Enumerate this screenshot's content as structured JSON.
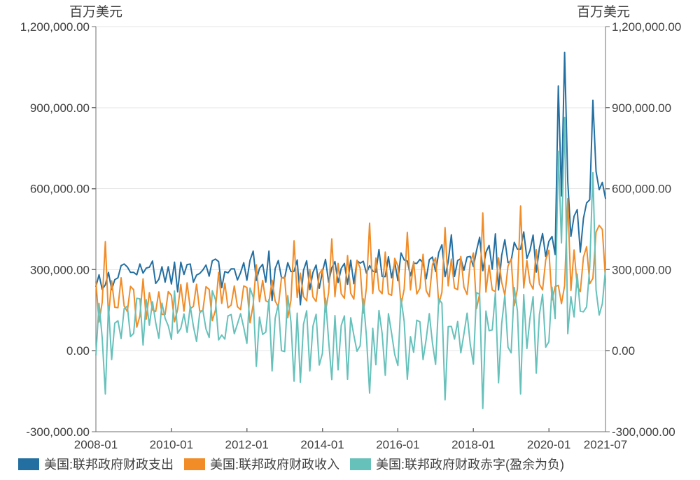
{
  "unit_left": "百万美元",
  "unit_right": "百万美元",
  "colors": {
    "expenditure": "#236FA1",
    "revenue": "#F18C27",
    "deficit": "#67C1BB",
    "text": "#3F3F3F",
    "grid": "#E6E6E6",
    "axis": "#6F6F6F",
    "background": "#FFFFFF"
  },
  "chart_data": {
    "type": "line",
    "unit": "百万美元",
    "frequency": "monthly",
    "x_start": "2008-01",
    "x_end": "2021-07",
    "n_points": 163,
    "grid": "horizontal",
    "legend_position": "bottom",
    "x_ticks": {
      "labels": [
        "2008-01",
        "2010-01",
        "2012-01",
        "2014-01",
        "2016-01",
        "2018-01",
        "2020-01",
        "2021-07"
      ],
      "month_indices": [
        0,
        24,
        48,
        72,
        96,
        120,
        144,
        162
      ]
    },
    "y_axis": {
      "min": -300000,
      "max": 1200000,
      "tick_values": [
        1200000,
        900000,
        600000,
        300000,
        0,
        -300000
      ],
      "tick_labels": [
        "1,200,000.00",
        "900,000.00",
        "600,000.00",
        "300,000.00",
        "0.00",
        "-300,000.00"
      ]
    },
    "series": [
      {
        "key": "expenditure",
        "name": "美国:联邦政府财政支出",
        "values": [
          238000,
          281000,
          227000,
          244000,
          290000,
          226000,
          263000,
          270000,
          315000,
          321000,
          310000,
          290000,
          290000,
          281000,
          321000,
          287000,
          306000,
          309000,
          332000,
          249000,
          264000,
          311000,
          254000,
          311000,
          247000,
          328000,
          218000,
          328000,
          282000,
          319000,
          321000,
          254000,
          280000,
          286000,
          299000,
          317000,
          276000,
          333000,
          339000,
          330000,
          233000,
          293000,
          288000,
          303000,
          303000,
          262000,
          289000,
          326000,
          261000,
          335000,
          369000,
          260000,
          305000,
          320000,
          254000,
          369000,
          186000,
          304000,
          334000,
          270000,
          269000,
          326000,
          293000,
          294000,
          336000,
          170000,
          298000,
          333000,
          226000,
          290000,
          317000,
          231000,
          292000,
          338000,
          253000,
          307000,
          330000,
          252000,
          305000,
          323000,
          246000,
          335000,
          248000,
          333000,
          324000,
          331000,
          287000,
          315000,
          295000,
          291000,
          374000,
          275000,
          274000,
          348000,
          270000,
          328000,
          259000,
          362000,
          336000,
          332000,
          277000,
          324000,
          323000,
          338000,
          324000,
          266000,
          337000,
          347000,
          293000,
          364000,
          392000,
          274000,
          329000,
          429000,
          275000,
          334000,
          341000,
          298000,
          347000,
          349000,
          312000,
          371000,
          420000,
          296000,
          364000,
          390000,
          302000,
          433000,
          225000,
          353000,
          411000,
          326000,
          332000,
          401000,
          376000,
          376000,
          440000,
          342000,
          371000,
          428000,
          291000,
          380000,
          434000,
          349000,
          405000,
          423000,
          356000,
          980000,
          573000,
          1105000,
          626000,
          423000,
          498000,
          522000,
          365000,
          490000,
          547000,
          559000,
          927000,
          664000,
          596000,
          623000,
          564000
        ]
      },
      {
        "key": "revenue",
        "name": "美国:联邦政府财政收入",
        "values": [
          255000,
          106000,
          179000,
          404000,
          124000,
          259000,
          161000,
          159000,
          270000,
          165000,
          145000,
          238000,
          226000,
          87000,
          129000,
          266000,
          117000,
          215000,
          151000,
          145000,
          218000,
          135000,
          134000,
          219000,
          205000,
          107000,
          153000,
          245000,
          146000,
          251000,
          156000,
          164000,
          246000,
          146000,
          149000,
          237000,
          227000,
          111000,
          150000,
          290000,
          175000,
          250000,
          159000,
          169000,
          240000,
          163000,
          152000,
          240000,
          234000,
          103000,
          171000,
          318000,
          181000,
          260000,
          185000,
          179000,
          261000,
          184000,
          162000,
          270000,
          272000,
          122000,
          186000,
          407000,
          197000,
          287000,
          200000,
          185000,
          301000,
          199000,
          182000,
          284000,
          302000,
          144000,
          216000,
          414000,
          200000,
          323000,
          211000,
          194000,
          352000,
          213000,
          191000,
          335000,
          306000,
          139000,
          234000,
          472000,
          212000,
          343000,
          225000,
          211000,
          365000,
          211000,
          205000,
          342000,
          314000,
          169000,
          228000,
          438000,
          225000,
          330000,
          210000,
          231000,
          357000,
          222000,
          200000,
          319000,
          344000,
          172000,
          216000,
          456000,
          240000,
          339000,
          232000,
          226000,
          349000,
          235000,
          208000,
          326000,
          362000,
          156000,
          211000,
          510000,
          217000,
          316000,
          225000,
          219000,
          344000,
          253000,
          206000,
          313000,
          340000,
          167000,
          229000,
          536000,
          232000,
          334000,
          251000,
          228000,
          374000,
          246000,
          225000,
          336000,
          372000,
          188000,
          237000,
          242000,
          174000,
          241000,
          563000,
          223000,
          373000,
          238000,
          219000,
          346000,
          385000,
          248000,
          268000,
          439000,
          464000,
          449000,
          262000
        ]
      },
      {
        "key": "deficit",
        "name": "美国:联邦政府财政赤字(盈余为负)",
        "values": [
          -17000,
          175000,
          48000,
          -160000,
          166000,
          -33000,
          102000,
          111000,
          45000,
          156000,
          165000,
          52000,
          64000,
          194000,
          192000,
          21000,
          189000,
          94000,
          181000,
          104000,
          46000,
          176000,
          120000,
          92000,
          42000,
          221000,
          65000,
          83000,
          136000,
          68000,
          165000,
          90000,
          34000,
          140000,
          150000,
          80000,
          49000,
          222000,
          189000,
          40000,
          58000,
          43000,
          129000,
          134000,
          63000,
          99000,
          137000,
          86000,
          27000,
          232000,
          198000,
          -58000,
          124000,
          60000,
          69000,
          190000,
          -75000,
          120000,
          172000,
          0,
          -3000,
          204000,
          107000,
          -113000,
          139000,
          -117000,
          98000,
          148000,
          -75000,
          91000,
          135000,
          -53000,
          -10000,
          194000,
          37000,
          -107000,
          130000,
          -71000,
          94000,
          129000,
          -106000,
          122000,
          57000,
          -2000,
          18000,
          192000,
          53000,
          -157000,
          83000,
          -52000,
          149000,
          64000,
          -91000,
          137000,
          65000,
          -14000,
          -55000,
          193000,
          108000,
          -106000,
          52000,
          -6000,
          113000,
          107000,
          -33000,
          44000,
          137000,
          28000,
          -51000,
          192000,
          176000,
          -182000,
          89000,
          90000,
          43000,
          108000,
          -8000,
          63000,
          139000,
          23000,
          -50000,
          215000,
          209000,
          -214000,
          147000,
          74000,
          77000,
          214000,
          -119000,
          100000,
          205000,
          13000,
          -8000,
          234000,
          147000,
          -160000,
          208000,
          8000,
          120000,
          200000,
          -83000,
          134000,
          209000,
          13000,
          33000,
          235000,
          119000,
          738000,
          399000,
          864000,
          63000,
          200000,
          125000,
          284000,
          146000,
          144000,
          162000,
          311000,
          659000,
          225000,
          132000,
          174000,
          302000
        ]
      }
    ]
  }
}
